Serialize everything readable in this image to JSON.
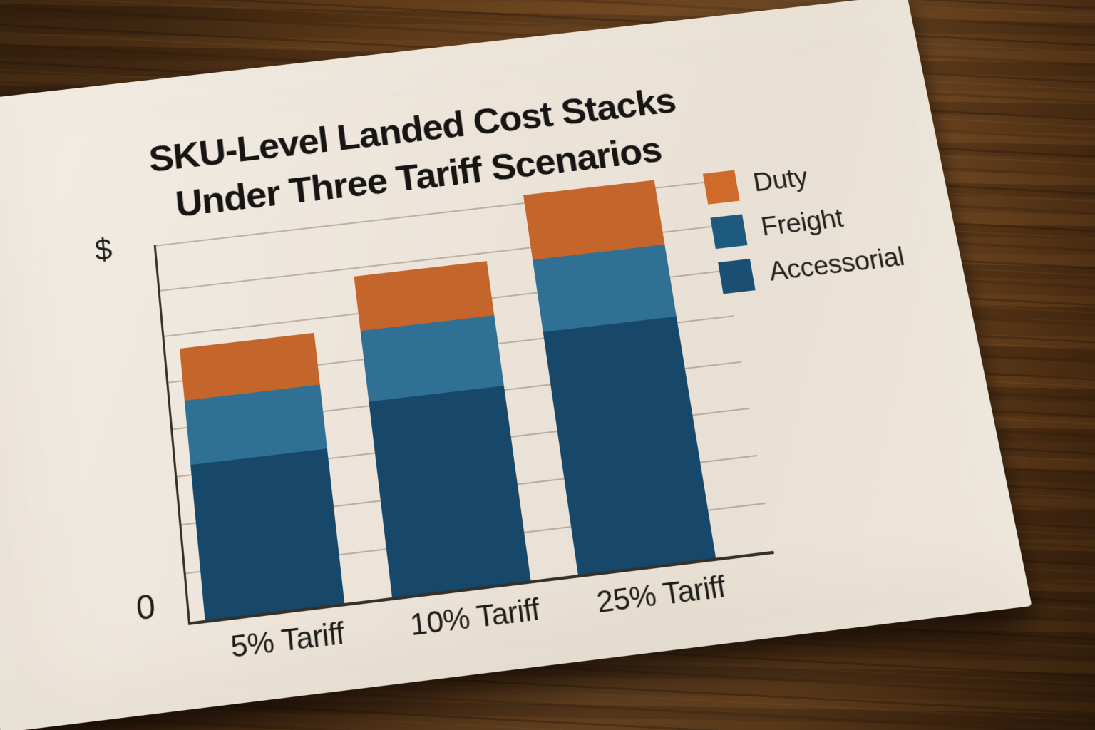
{
  "chart_data": {
    "type": "bar",
    "stacked": true,
    "title": "SKU-Level Landed Cost Stacks Under Three Tariff Scenarios",
    "title_lines": [
      "SKU-Level Landed Cost Stacks",
      "Under Three Tariff Scenarios"
    ],
    "categories": [
      "5% Tariff",
      "10% Tariff",
      "25% Tariff"
    ],
    "series": [
      {
        "name": "Accessorial",
        "color": "#17486a",
        "legend_color": "#1a4e72",
        "values": [
          40,
          51,
          64
        ]
      },
      {
        "name": "Freight",
        "color": "#2f7094",
        "legend_color": "#1e5a7e",
        "values": [
          17,
          19,
          20
        ]
      },
      {
        "name": "Duty",
        "color": "#c4662c",
        "legend_color": "#cf6a2a",
        "values": [
          14,
          15,
          18
        ]
      }
    ],
    "legend": {
      "position": "top-right",
      "labels": [
        "Duty",
        "Freight",
        "Accessorial"
      ]
    },
    "xlabel": "",
    "ylabel": "$",
    "y_axis": {
      "top_label": "$",
      "zero_label": "0",
      "min": 0,
      "max": 100,
      "gridlines": 8,
      "numeric_labels_shown": false
    },
    "values_note": "y-axis shows only '$' and '0'; segment values estimated from gridline intervals, 100 = top gridline"
  },
  "card": {
    "background": "#ece4d9"
  }
}
